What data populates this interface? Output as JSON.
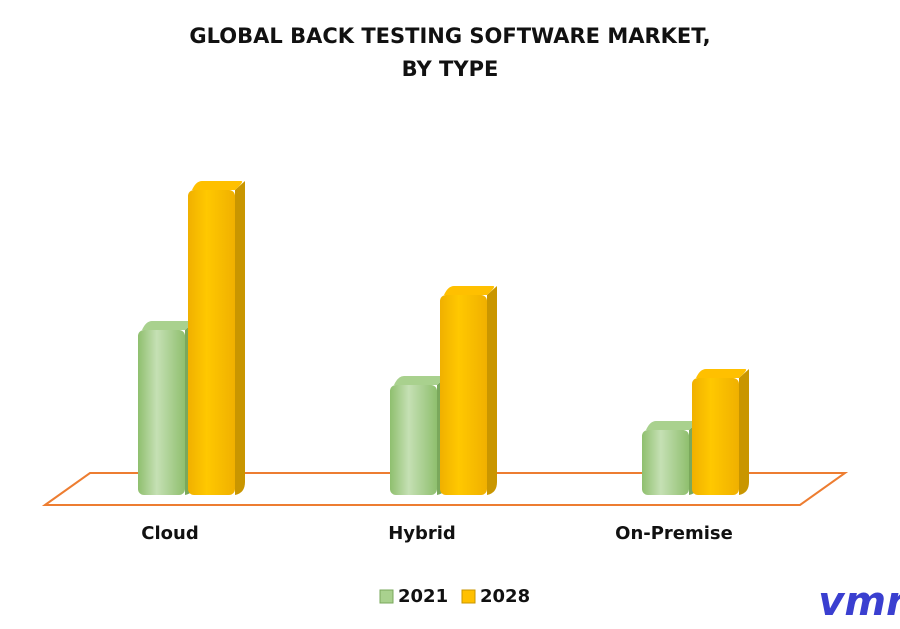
{
  "chart_data": {
    "type": "bar3d",
    "title": [
      "GLOBAL BACK TESTING SOFTWARE MARKET,",
      "BY TYPE"
    ],
    "categories": [
      "Cloud",
      "Hybrid",
      "On-Premise"
    ],
    "series": [
      {
        "name": "2021",
        "color": "#a9d18e",
        "values": [
          165,
          110,
          65
        ]
      },
      {
        "name": "2028",
        "color": "#ffc000",
        "values": [
          305,
          200,
          117
        ]
      }
    ],
    "floor_color": "#ed7d31",
    "logo": "vmr"
  }
}
